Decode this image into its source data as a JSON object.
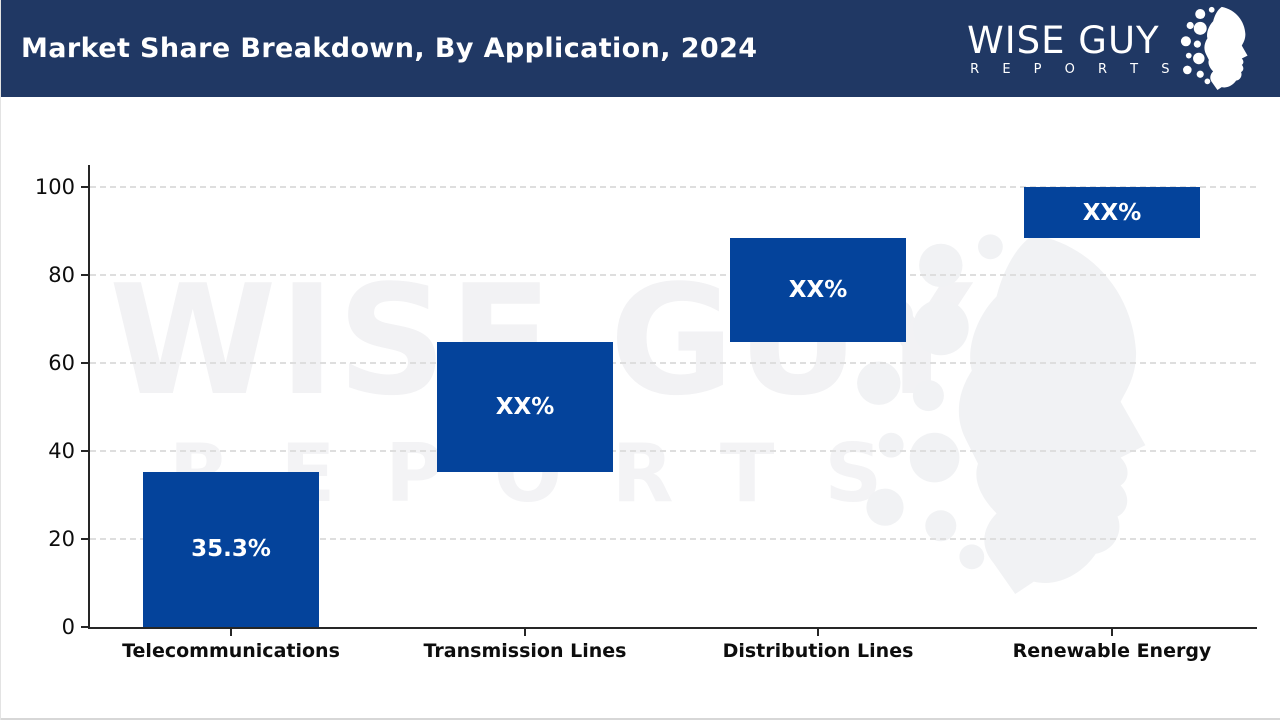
{
  "header": {
    "title": "Market Share Breakdown, By Application, 2024",
    "logo": {
      "word": "WISE GUY",
      "sub": "R E P O R T S"
    }
  },
  "watermark": {
    "line1": "WISE GUY",
    "line2": "REPORTS"
  },
  "colors": {
    "header_bg": "#203864",
    "bar": "#04439b",
    "bar_label": "#ffffff",
    "grid": "#dedede",
    "axis": "#262626",
    "watermark": "#f1f2f4"
  },
  "chart_data": {
    "type": "bar",
    "subtype": "waterfall",
    "title": "Market Share Breakdown, By Application, 2024",
    "categories": [
      "Telecommunications",
      "Transmission Lines",
      "Distribution Lines",
      "Renewable Energy"
    ],
    "segments": [
      {
        "category": "Telecommunications",
        "start": 0,
        "end": 35.3,
        "label": "35.3%"
      },
      {
        "category": "Transmission Lines",
        "start": 35.3,
        "end": 64.7,
        "label": "XX%"
      },
      {
        "category": "Distribution Lines",
        "start": 64.7,
        "end": 88.4,
        "label": "XX%"
      },
      {
        "category": "Renewable Energy",
        "start": 88.4,
        "end": 100,
        "label": "XX%"
      }
    ],
    "values": [
      35.3,
      29.4,
      23.7,
      11.6
    ],
    "yticks": [
      0,
      20,
      40,
      60,
      80,
      100
    ],
    "ylim": [
      0,
      105
    ],
    "xlabel": "",
    "ylabel": "",
    "grid": true,
    "legend": "none"
  }
}
